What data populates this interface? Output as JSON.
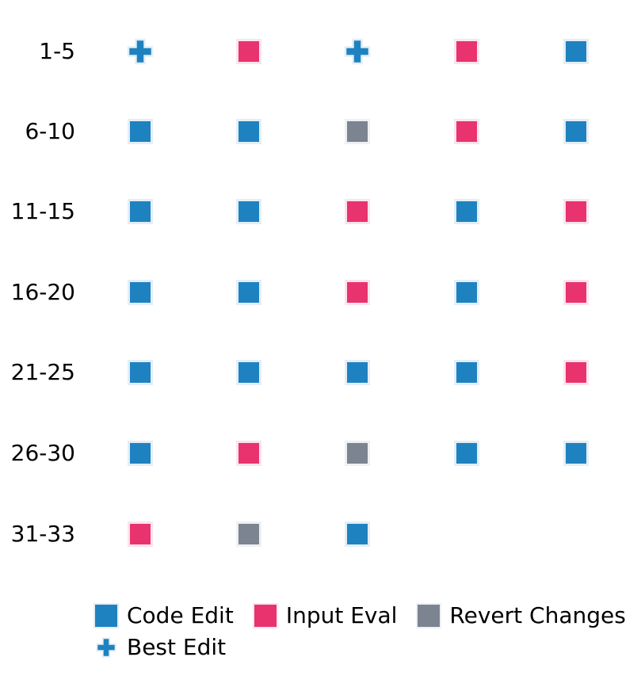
{
  "chart_data": {
    "type": "scatter",
    "title": "",
    "xlabel": "",
    "ylabel": "",
    "grid": false,
    "legend_position": "bottom-left",
    "row_labels": [
      "1-5",
      "6-10",
      "11-15",
      "16-20",
      "21-25",
      "26-30",
      "31-33"
    ],
    "columns_per_row": 5,
    "matrix": [
      [
        "best",
        "input",
        "best",
        "input",
        "code"
      ],
      [
        "code",
        "code",
        "revert",
        "input",
        "code"
      ],
      [
        "code",
        "code",
        "input",
        "code",
        "input"
      ],
      [
        "code",
        "code",
        "input",
        "code",
        "input"
      ],
      [
        "code",
        "code",
        "code",
        "code",
        "input"
      ],
      [
        "code",
        "input",
        "revert",
        "code",
        "code"
      ],
      [
        "input",
        "revert",
        "code"
      ]
    ],
    "legend": [
      {
        "key": "code",
        "label": "Code Edit",
        "marker": "square"
      },
      {
        "key": "input",
        "label": "Input Eval",
        "marker": "square"
      },
      {
        "key": "revert",
        "label": "Revert Changes",
        "marker": "square"
      },
      {
        "key": "best",
        "label": "Best Edit",
        "marker": "plus"
      }
    ],
    "legend_rows": [
      [
        0,
        1,
        2
      ],
      [
        3
      ]
    ],
    "colors": {
      "code": "#1f82c0",
      "input": "#e8336f",
      "revert": "#7b8490",
      "best": "#1f82c0"
    },
    "halo_colors": {
      "code": "#e3eef7",
      "input": "#fbe4ed",
      "revert": "#eef0f2",
      "best": "#e3eef7"
    },
    "text_color": "#000000",
    "background_color": "#ffffff"
  }
}
